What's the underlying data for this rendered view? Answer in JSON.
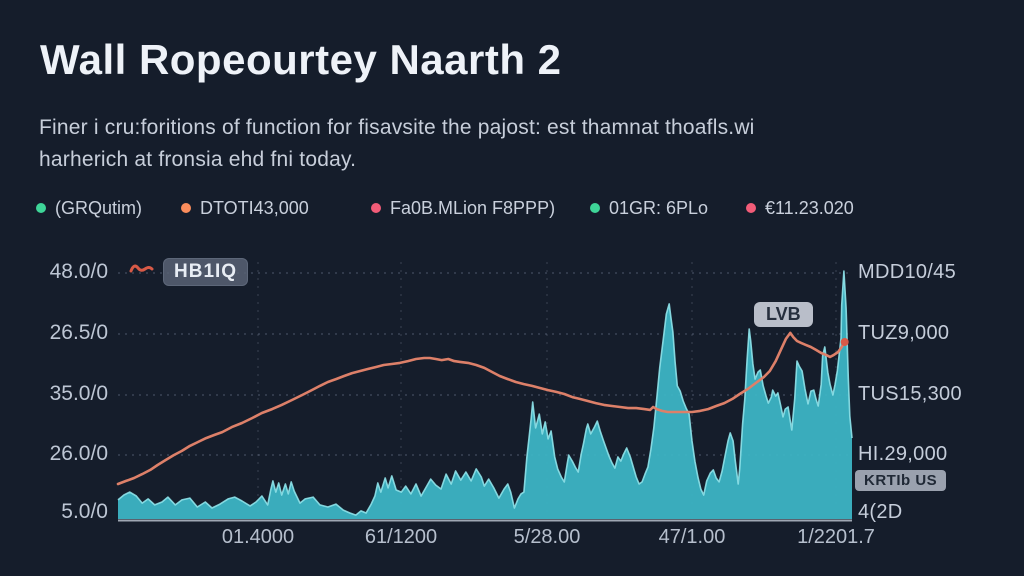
{
  "page": {
    "title": "Wall Ropeourtey Naarth 2",
    "subtitle_line1": "Finer i cru:foritions of function for fisavsite the pajost: est thamnat thoafls.wi",
    "subtitle_line2": "harherich at fronsia ehd fni today."
  },
  "legend": {
    "items": [
      {
        "label": "(GRQutim)",
        "color": "#3ed598"
      },
      {
        "label": "DTOTI43,000",
        "color": "#fb8d5c"
      },
      {
        "label": "Fa0B.MLion F8PPP)",
        "color": "#f25c78"
      },
      {
        "label": "01GR: 6PLo",
        "color": "#3ed598"
      },
      {
        "label": "€11.23.020",
        "color": "#f25c78"
      }
    ]
  },
  "chart_data": {
    "type": "area",
    "title": "",
    "grid": {
      "horizontal_dotted": true,
      "vertical_dotted": true
    },
    "y_ticks": [
      "48.0/0",
      "26.5/0",
      "35.0/0",
      "26.0/0",
      "5.0/0"
    ],
    "x_ticks": [
      "01.4000",
      "61/1200",
      "5/28.00",
      "47/1.00",
      "1/2201.7"
    ],
    "right_labels": [
      "MDD10/45",
      "TUZ9,000",
      "TUS15,300",
      "HI.29,000",
      "4(2D"
    ],
    "right_badge": "KRTIb US",
    "annotations": {
      "top_left_badge": "HB1IQ",
      "peak_badge": "LVB"
    },
    "colors": {
      "area_fill": "#3cb4c4",
      "area_stroke": "#8fe3ea",
      "line_stroke": "#dd8069",
      "accent_red": "#d85a47",
      "grid": "rgba(150,162,186,0.30)",
      "baseline": "#aeb6c2"
    },
    "series": [
      {
        "name": "volume-area",
        "type": "area",
        "points": [
          [
            0,
            7.3
          ],
          [
            0.8,
            9.2
          ],
          [
            1.6,
            10.3
          ],
          [
            2.5,
            8.8
          ],
          [
            3.3,
            6.1
          ],
          [
            4.1,
            7.7
          ],
          [
            5,
            5.4
          ],
          [
            6,
            6.5
          ],
          [
            6.8,
            8.4
          ],
          [
            7.8,
            5.4
          ],
          [
            8.7,
            7.3
          ],
          [
            9.8,
            8
          ],
          [
            10.8,
            4.6
          ],
          [
            11.9,
            6.5
          ],
          [
            12.8,
            4.2
          ],
          [
            13.9,
            5.7
          ],
          [
            15,
            7.7
          ],
          [
            15.9,
            8.4
          ],
          [
            16.9,
            6.9
          ],
          [
            18,
            5
          ],
          [
            18.8,
            6.5
          ],
          [
            19.6,
            8.8
          ],
          [
            20.4,
            5.4
          ],
          [
            20.8,
            11.1
          ],
          [
            21.1,
            14.6
          ],
          [
            21.5,
            10.3
          ],
          [
            21.9,
            13.8
          ],
          [
            22.3,
            9.2
          ],
          [
            22.8,
            13.4
          ],
          [
            23.2,
            9.6
          ],
          [
            23.6,
            14.2
          ],
          [
            24,
            10.7
          ],
          [
            24.4,
            8.4
          ],
          [
            24.8,
            6.1
          ],
          [
            25.5,
            7.7
          ],
          [
            26.6,
            8.4
          ],
          [
            27.5,
            5.4
          ],
          [
            28.6,
            4.6
          ],
          [
            29.7,
            5.7
          ],
          [
            30.7,
            3.4
          ],
          [
            31.6,
            2.3
          ],
          [
            32.4,
            1.5
          ],
          [
            33.1,
            3.1
          ],
          [
            33.8,
            2.3
          ],
          [
            34.5,
            5.7
          ],
          [
            35,
            8.8
          ],
          [
            35.4,
            13.8
          ],
          [
            35.8,
            10.3
          ],
          [
            36.4,
            15.7
          ],
          [
            36.8,
            11.9
          ],
          [
            37.3,
            16.5
          ],
          [
            37.9,
            11.1
          ],
          [
            38.6,
            10.3
          ],
          [
            39.2,
            12.6
          ],
          [
            39.9,
            9.6
          ],
          [
            40.6,
            13.4
          ],
          [
            41.3,
            8.8
          ],
          [
            42,
            12.3
          ],
          [
            42.6,
            15.3
          ],
          [
            43.3,
            13
          ],
          [
            44,
            11.5
          ],
          [
            44.7,
            17.2
          ],
          [
            45.4,
            13.4
          ],
          [
            46,
            18.4
          ],
          [
            46.7,
            14.9
          ],
          [
            47.4,
            18
          ],
          [
            48.1,
            14.6
          ],
          [
            48.8,
            19.2
          ],
          [
            49.5,
            16.1
          ],
          [
            49.9,
            12.6
          ],
          [
            50.5,
            15.3
          ],
          [
            51.2,
            11.9
          ],
          [
            51.9,
            8
          ],
          [
            52.6,
            11.5
          ],
          [
            53.1,
            13.4
          ],
          [
            53.5,
            10.3
          ],
          [
            54,
            4.2
          ],
          [
            54.5,
            7.7
          ],
          [
            54.9,
            9.6
          ],
          [
            55.3,
            10.3
          ],
          [
            55.7,
            23.4
          ],
          [
            56,
            31
          ],
          [
            56.3,
            38.7
          ],
          [
            56.5,
            44.8
          ],
          [
            56.9,
            34.9
          ],
          [
            57.4,
            40.2
          ],
          [
            57.8,
            32.6
          ],
          [
            58.2,
            37.2
          ],
          [
            58.6,
            30.7
          ],
          [
            59,
            33.7
          ],
          [
            59.5,
            23.8
          ],
          [
            59.9,
            19.2
          ],
          [
            60.4,
            16.1
          ],
          [
            60.8,
            14.2
          ],
          [
            61.2,
            21.1
          ],
          [
            61.4,
            24.5
          ],
          [
            61.9,
            22.2
          ],
          [
            62.3,
            19.9
          ],
          [
            62.7,
            18
          ],
          [
            63.1,
            24.9
          ],
          [
            63.4,
            28.7
          ],
          [
            63.8,
            34.5
          ],
          [
            64,
            36.4
          ],
          [
            64.4,
            32.6
          ],
          [
            64.9,
            35.2
          ],
          [
            65.3,
            37.5
          ],
          [
            65.7,
            33.7
          ],
          [
            66.1,
            30.3
          ],
          [
            66.5,
            27.2
          ],
          [
            66.9,
            24.1
          ],
          [
            67.3,
            21.5
          ],
          [
            67.7,
            19.5
          ],
          [
            68.1,
            23.8
          ],
          [
            68.5,
            22.2
          ],
          [
            68.9,
            24.9
          ],
          [
            69.3,
            27.2
          ],
          [
            69.8,
            23.8
          ],
          [
            70.2,
            19.9
          ],
          [
            70.6,
            16.1
          ],
          [
            71,
            13.4
          ],
          [
            71.4,
            14.2
          ],
          [
            71.8,
            17.2
          ],
          [
            72.2,
            19.9
          ],
          [
            72.6,
            26.8
          ],
          [
            73,
            34.9
          ],
          [
            73.4,
            46.4
          ],
          [
            73.8,
            57.9
          ],
          [
            74.3,
            69.3
          ],
          [
            74.7,
            78.5
          ],
          [
            75.1,
            82.4
          ],
          [
            75.3,
            77.8
          ],
          [
            75.6,
            71.6
          ],
          [
            75.9,
            60.2
          ],
          [
            76.2,
            51
          ],
          [
            76.6,
            49
          ],
          [
            77,
            45.2
          ],
          [
            77.4,
            42.5
          ],
          [
            77.8,
            40.2
          ],
          [
            78.2,
            29.9
          ],
          [
            78.6,
            22.2
          ],
          [
            79,
            16.1
          ],
          [
            79.4,
            11.5
          ],
          [
            79.8,
            9.2
          ],
          [
            80.2,
            14.6
          ],
          [
            80.7,
            17.6
          ],
          [
            81.1,
            18.8
          ],
          [
            81.5,
            15.7
          ],
          [
            81.9,
            14.2
          ],
          [
            82.3,
            18.4
          ],
          [
            82.7,
            24.1
          ],
          [
            83.1,
            29.9
          ],
          [
            83.4,
            33
          ],
          [
            83.8,
            29.9
          ],
          [
            84.1,
            22.2
          ],
          [
            84.5,
            13.4
          ],
          [
            84.7,
            19.2
          ],
          [
            85.1,
            36.4
          ],
          [
            85.4,
            46
          ],
          [
            85.7,
            60.5
          ],
          [
            86,
            72.8
          ],
          [
            86.2,
            68.2
          ],
          [
            86.5,
            59.4
          ],
          [
            86.8,
            53.6
          ],
          [
            87.2,
            56.3
          ],
          [
            87.5,
            57.1
          ],
          [
            87.9,
            51
          ],
          [
            88.3,
            47.1
          ],
          [
            88.6,
            44.4
          ],
          [
            89,
            46.7
          ],
          [
            89.2,
            49.4
          ],
          [
            89.6,
            47.1
          ],
          [
            89.9,
            48.3
          ],
          [
            90.3,
            43.3
          ],
          [
            90.6,
            39.1
          ],
          [
            90.9,
            42.1
          ],
          [
            91.3,
            42.9
          ],
          [
            91.6,
            37.5
          ],
          [
            91.8,
            34.1
          ],
          [
            92.2,
            46
          ],
          [
            92.5,
            60.5
          ],
          [
            92.8,
            58.6
          ],
          [
            93.2,
            56.7
          ],
          [
            93.6,
            49.8
          ],
          [
            94,
            44.1
          ],
          [
            94.4,
            49
          ],
          [
            94.8,
            49.4
          ],
          [
            95.1,
            46
          ],
          [
            95.4,
            43.3
          ],
          [
            95.8,
            51.7
          ],
          [
            96,
            62.5
          ],
          [
            96.3,
            65.9
          ],
          [
            96.7,
            56.3
          ],
          [
            97,
            51.7
          ],
          [
            97.4,
            47.5
          ],
          [
            97.7,
            51.7
          ],
          [
            98,
            56.7
          ],
          [
            98.2,
            61.7
          ],
          [
            98.5,
            69.3
          ],
          [
            98.6,
            82
          ],
          [
            98.9,
            95
          ],
          [
            99.2,
            80.8
          ],
          [
            99.5,
            54
          ],
          [
            99.7,
            39.5
          ],
          [
            100,
            31
          ]
        ]
      },
      {
        "name": "trend-line",
        "type": "line",
        "points": [
          [
            0,
            13.4
          ],
          [
            1.1,
            14.6
          ],
          [
            2.2,
            15.7
          ],
          [
            3.3,
            17.2
          ],
          [
            4.4,
            18.8
          ],
          [
            5.4,
            20.7
          ],
          [
            6.5,
            22.6
          ],
          [
            7.6,
            24.5
          ],
          [
            8.7,
            26.1
          ],
          [
            9.8,
            28
          ],
          [
            10.9,
            29.5
          ],
          [
            12,
            31
          ],
          [
            13.1,
            32.2
          ],
          [
            14.2,
            33.3
          ],
          [
            15.5,
            35.2
          ],
          [
            16.9,
            36.8
          ],
          [
            18.3,
            38.7
          ],
          [
            19.6,
            40.6
          ],
          [
            21,
            42.1
          ],
          [
            22.3,
            43.7
          ],
          [
            23.7,
            45.6
          ],
          [
            25.1,
            47.5
          ],
          [
            26.4,
            49.4
          ],
          [
            27.5,
            51
          ],
          [
            28.6,
            52.5
          ],
          [
            29.7,
            53.6
          ],
          [
            30.8,
            54.8
          ],
          [
            31.9,
            55.9
          ],
          [
            33,
            56.7
          ],
          [
            34.1,
            57.5
          ],
          [
            35.1,
            58.2
          ],
          [
            36.2,
            59
          ],
          [
            37.3,
            59.4
          ],
          [
            38.4,
            59.8
          ],
          [
            39.5,
            60.5
          ],
          [
            40.6,
            61.3
          ],
          [
            41.7,
            61.7
          ],
          [
            42.5,
            61.7
          ],
          [
            43.3,
            61.3
          ],
          [
            44.1,
            60.9
          ],
          [
            45,
            61.3
          ],
          [
            45.8,
            60.5
          ],
          [
            46.6,
            60.2
          ],
          [
            47.7,
            59.8
          ],
          [
            48.8,
            59
          ],
          [
            49.9,
            57.9
          ],
          [
            51,
            56.3
          ],
          [
            52,
            54.8
          ],
          [
            53.1,
            53.6
          ],
          [
            54.2,
            52.5
          ],
          [
            55.3,
            51.7
          ],
          [
            56.4,
            51
          ],
          [
            57.5,
            50.2
          ],
          [
            58.6,
            49.4
          ],
          [
            59.7,
            48.7
          ],
          [
            60.8,
            47.9
          ],
          [
            61.9,
            46.7
          ],
          [
            62.9,
            46
          ],
          [
            64,
            45.2
          ],
          [
            65.1,
            44.4
          ],
          [
            66.2,
            43.7
          ],
          [
            67.3,
            43.3
          ],
          [
            68.4,
            42.9
          ],
          [
            69.5,
            42.5
          ],
          [
            70.6,
            42.5
          ],
          [
            71.7,
            42.1
          ],
          [
            72.5,
            41.8
          ],
          [
            72.9,
            42.9
          ],
          [
            73.4,
            42.1
          ],
          [
            74.1,
            41.4
          ],
          [
            74.9,
            41
          ],
          [
            76,
            41
          ],
          [
            77.1,
            41
          ],
          [
            78.2,
            41
          ],
          [
            79.3,
            41.4
          ],
          [
            80.4,
            42.1
          ],
          [
            81.5,
            43.3
          ],
          [
            82.6,
            44.4
          ],
          [
            83.7,
            46
          ],
          [
            84.7,
            47.9
          ],
          [
            85.8,
            49.8
          ],
          [
            86.9,
            52.1
          ],
          [
            88,
            54.4
          ],
          [
            88.8,
            56.7
          ],
          [
            89.6,
            60.5
          ],
          [
            90.3,
            64.8
          ],
          [
            91,
            69
          ],
          [
            91.6,
            71.3
          ],
          [
            92,
            69.7
          ],
          [
            92.5,
            68.2
          ],
          [
            93.1,
            67.4
          ],
          [
            93.7,
            66.7
          ],
          [
            94.4,
            65.9
          ],
          [
            95.1,
            64.8
          ],
          [
            95.8,
            63.6
          ],
          [
            96.5,
            62.8
          ],
          [
            97,
            62.1
          ],
          [
            97.5,
            62.8
          ],
          [
            98.1,
            64
          ],
          [
            98.6,
            65.9
          ],
          [
            99,
            67.8
          ]
        ],
        "end_dot": [
          99,
          67.8
        ]
      }
    ]
  }
}
